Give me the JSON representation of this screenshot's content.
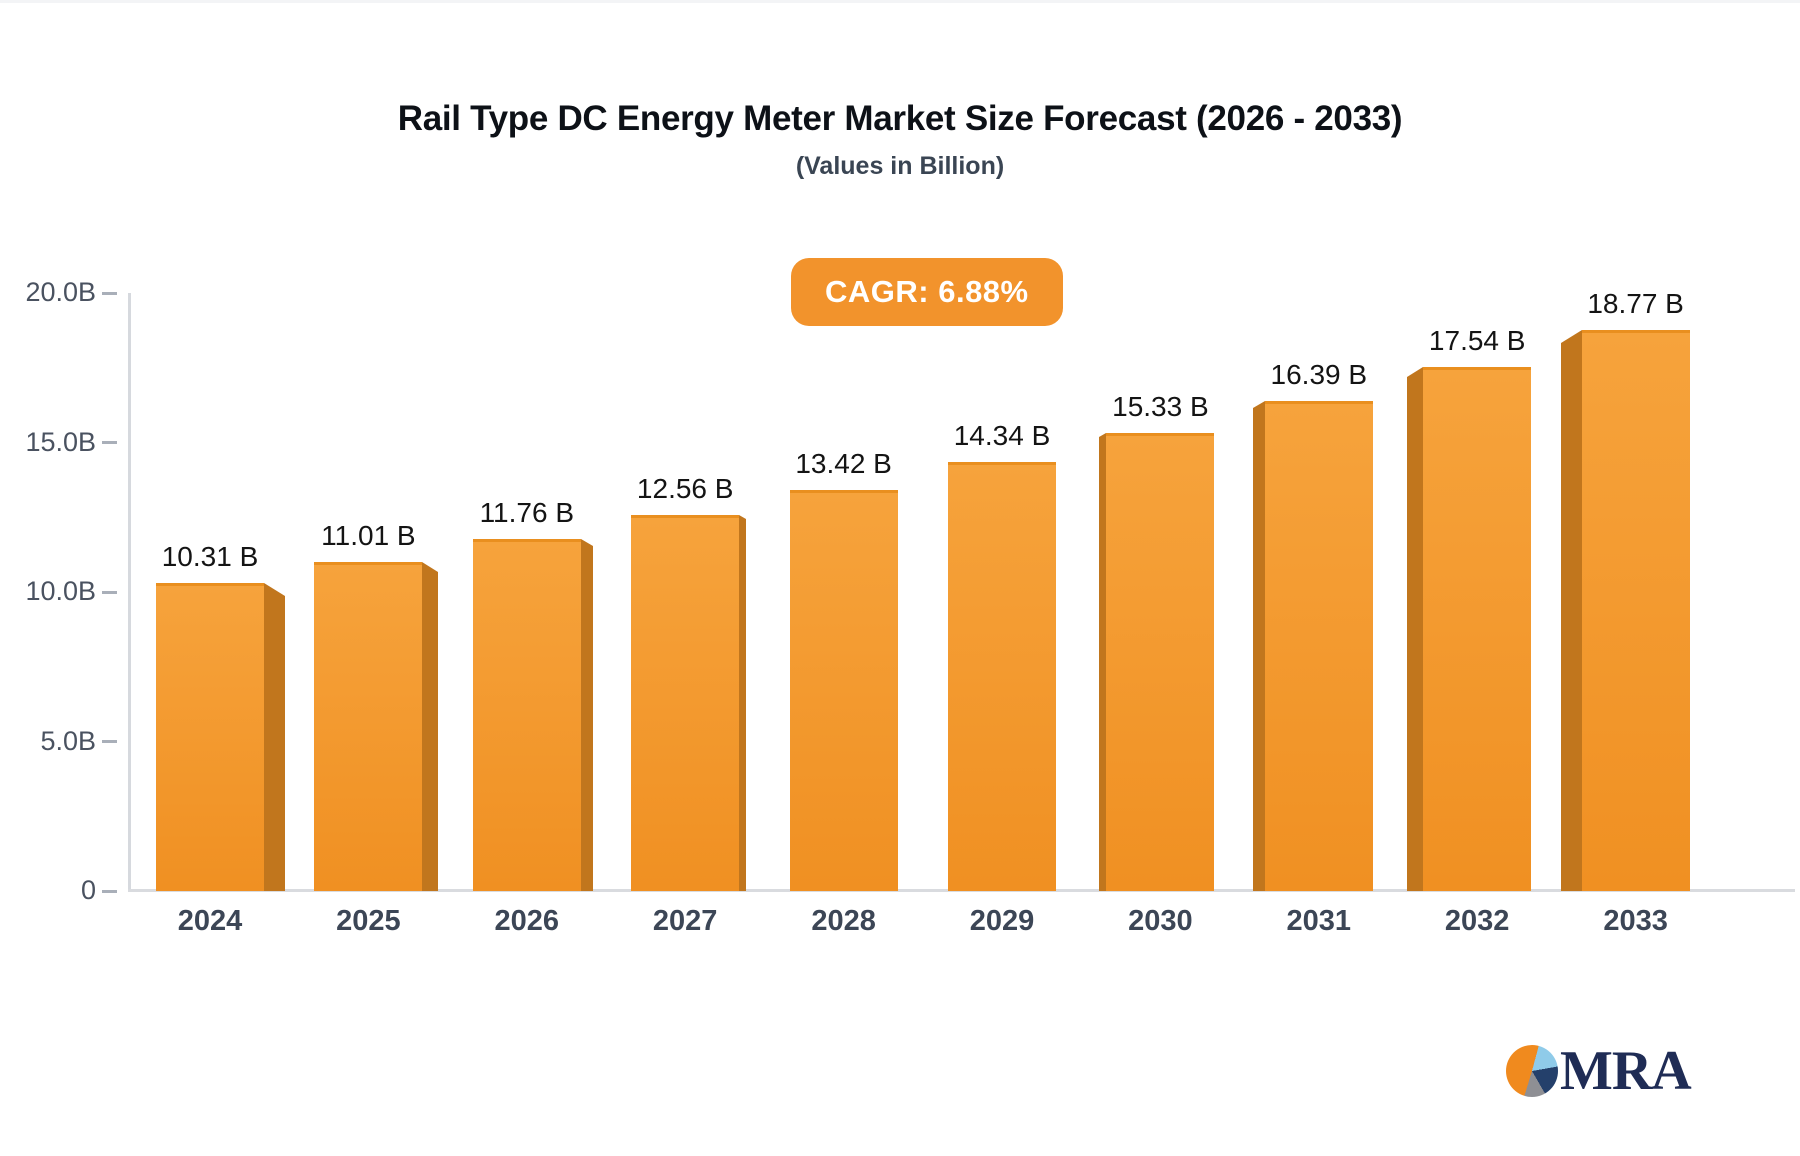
{
  "title": "Rail Type DC Energy Meter Market Size Forecast (2026 - 2033)",
  "subtitle": "(Values in Billion)",
  "badge": {
    "label": "CAGR: 6.88%"
  },
  "logo": {
    "text": "MRA",
    "icon": "pie-chart-logo-icon"
  },
  "colors": {
    "accent_orange": "#f2932c",
    "bar_face_top": "#f6a33c",
    "bar_face_bottom": "#f09022",
    "bar_top_edge": "#e98f1f",
    "bar_side": "#c1761d",
    "axis_line": "#d6d9de",
    "tick_dash": "#a9afb9",
    "tick_label": "#4a5260",
    "year_label": "#3c4656",
    "value_label": "#141414",
    "logo_navy": "#1f2c55",
    "logo_blue": "#8fcbe9",
    "logo_gray": "#8e8f94",
    "logo_orange": "#f08a1e"
  },
  "chart_data": {
    "type": "bar",
    "title": "Rail Type DC Energy Meter Market Size Forecast (2026 - 2033)",
    "subtitle": "(Values in Billion)",
    "annotation": "CAGR: 6.88%",
    "categories": [
      "2024",
      "2025",
      "2026",
      "2027",
      "2028",
      "2029",
      "2030",
      "2031",
      "2032",
      "2033"
    ],
    "values": [
      10.31,
      11.01,
      11.76,
      12.56,
      13.42,
      14.34,
      15.33,
      16.39,
      17.54,
      18.77
    ],
    "value_labels": [
      "10.31 B",
      "11.01 B",
      "11.76 B",
      "12.56 B",
      "13.42 B",
      "14.34 B",
      "15.33 B",
      "16.39 B",
      "17.54 B",
      "18.77 B"
    ],
    "xlabel": "",
    "ylabel": "",
    "ylim": [
      0,
      20
    ],
    "grid": false,
    "legend": false,
    "yticks": [
      {
        "value": 20,
        "label": "20.0B"
      },
      {
        "value": 15,
        "label": "15.0B"
      },
      {
        "value": 10,
        "label": "10.0B"
      },
      {
        "value": 5,
        "label": "5.0B"
      },
      {
        "value": 0,
        "label": "0"
      }
    ]
  }
}
